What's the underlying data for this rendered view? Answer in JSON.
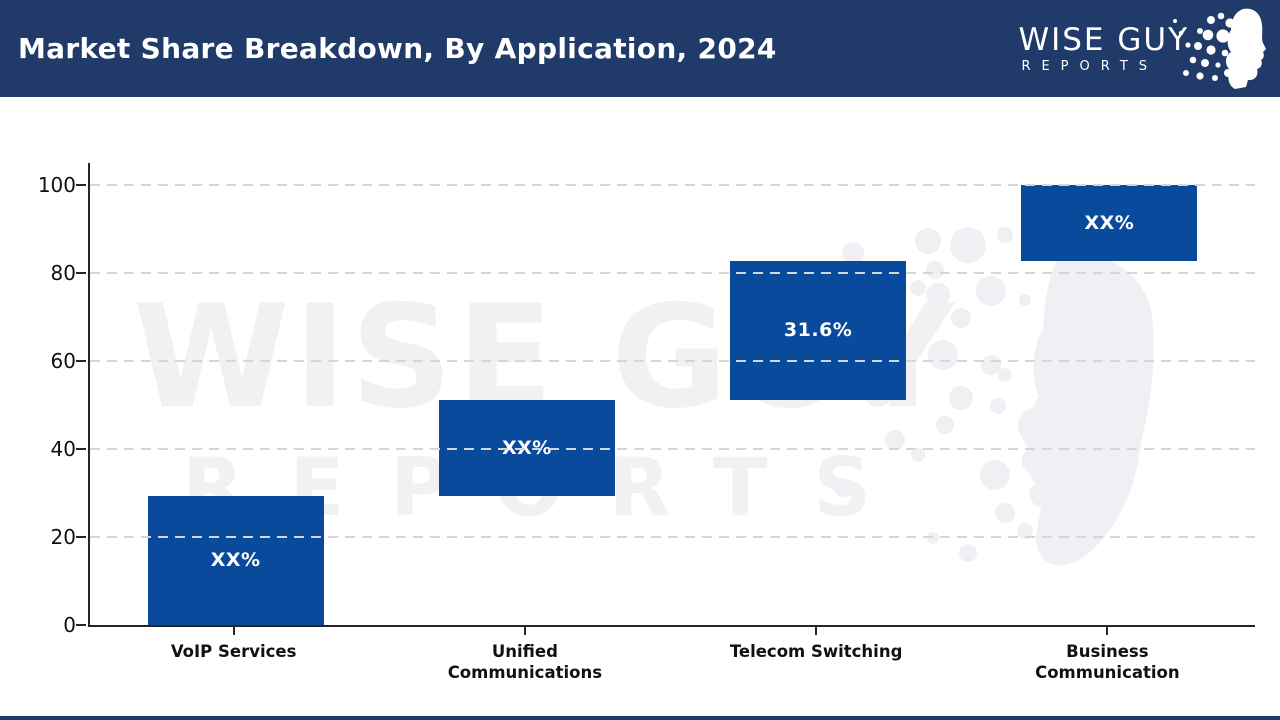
{
  "header": {
    "title": "Market Share Breakdown, By Application, 2024",
    "logo": {
      "line1": "WISE GUY",
      "line2": "REPORTS"
    }
  },
  "watermark": {
    "line1": "WISE GUY",
    "line2": "REPORTS"
  },
  "chart_data": {
    "type": "bar",
    "subtype": "waterfall",
    "title": "Market Share Breakdown, By Application, 2024",
    "categories": [
      "VoIP Services",
      "Unified Communications",
      "Telecom Switching",
      "Business Communication"
    ],
    "category_lines": [
      [
        "VoIP Services"
      ],
      [
        "Unified",
        "Communications"
      ],
      [
        "Telecom Switching"
      ],
      [
        "Business",
        "Communication"
      ]
    ],
    "segments": [
      {
        "category": "VoIP Services",
        "start": 0,
        "end": 29.4,
        "value": 29.4,
        "label": "XX%"
      },
      {
        "category": "Unified Communications",
        "start": 29.4,
        "end": 51.2,
        "value": 21.8,
        "label": "XX%"
      },
      {
        "category": "Telecom Switching",
        "start": 51.2,
        "end": 82.8,
        "value": 31.6,
        "label": "31.6%"
      },
      {
        "category": "Business Communication",
        "start": 82.8,
        "end": 100,
        "value": 17.2,
        "label": "XX%"
      }
    ],
    "ylabel": "",
    "xlabel": "",
    "yticks": [
      0,
      20,
      40,
      60,
      80,
      100
    ],
    "ylim": [
      0,
      105
    ],
    "grid": "horizontal-dashed",
    "legend": "none",
    "bar_color": "#0a4a9c",
    "bar_label_color": "#ffffff"
  },
  "colors": {
    "header_bg": "#203a69",
    "bar": "#0a4a9c",
    "grid": "#d6d6d6",
    "axis": "#262626",
    "watermark": "#f1f1f4"
  }
}
